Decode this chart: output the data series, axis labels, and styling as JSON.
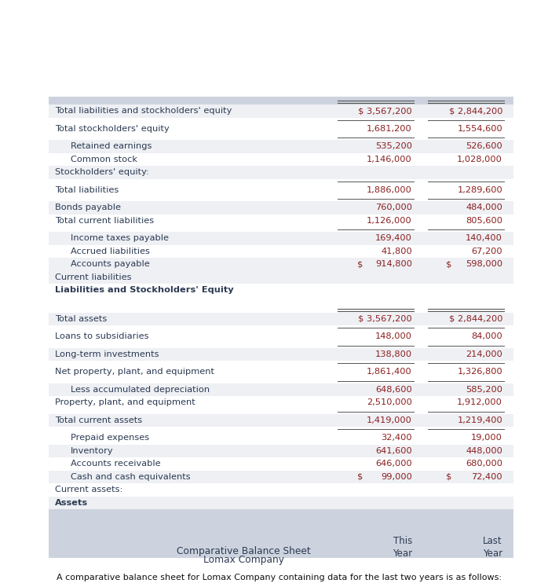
{
  "intro_text": "A comparative balance sheet for Lomax Company containing data for the last two years is as follows:",
  "title_line1": "Lomax Company",
  "title_line2": "Comparative Balance Sheet",
  "header_bg": "#cdd3de",
  "row_bg_alt": "#eef0f4",
  "row_bg_white": "#ffffff",
  "text_color": "#2b3a52",
  "number_color": "#8b2020",
  "intro_color": "#111111",
  "bottom_bar_color": "#cdd3de",
  "separator_color": "#555555",
  "rows": [
    {
      "label": "Assets",
      "this": "",
      "last": "",
      "indent": 0,
      "bold": true,
      "dollar_sign": false,
      "double_line": false,
      "is_sep": false,
      "is_gap": false,
      "bg": "alt"
    },
    {
      "label": "Current assets:",
      "this": "",
      "last": "",
      "indent": 0,
      "bold": false,
      "dollar_sign": false,
      "double_line": false,
      "is_sep": false,
      "is_gap": false,
      "bg": "white"
    },
    {
      "label": "Cash and cash equivalents",
      "this": "99,000",
      "last": "72,400",
      "indent": 1,
      "bold": false,
      "dollar_sign": true,
      "double_line": false,
      "is_sep": false,
      "is_gap": false,
      "bg": "alt"
    },
    {
      "label": "Accounts receivable",
      "this": "646,000",
      "last": "680,000",
      "indent": 1,
      "bold": false,
      "dollar_sign": false,
      "double_line": false,
      "is_sep": false,
      "is_gap": false,
      "bg": "white"
    },
    {
      "label": "Inventory",
      "this": "641,600",
      "last": "448,000",
      "indent": 1,
      "bold": false,
      "dollar_sign": false,
      "double_line": false,
      "is_sep": false,
      "is_gap": false,
      "bg": "alt"
    },
    {
      "label": "Prepaid expenses",
      "this": "32,400",
      "last": "19,000",
      "indent": 1,
      "bold": false,
      "dollar_sign": false,
      "double_line": false,
      "is_sep": false,
      "is_gap": false,
      "bg": "white"
    },
    {
      "label": "",
      "this": "",
      "last": "",
      "indent": 0,
      "bold": false,
      "dollar_sign": false,
      "double_line": false,
      "is_sep": true,
      "is_gap": false,
      "bg": "white"
    },
    {
      "label": "Total current assets",
      "this": "1,419,000",
      "last": "1,219,400",
      "indent": 0,
      "bold": false,
      "dollar_sign": false,
      "double_line": false,
      "is_sep": false,
      "is_gap": false,
      "bg": "alt"
    },
    {
      "label": "",
      "this": "",
      "last": "",
      "indent": 0,
      "bold": false,
      "dollar_sign": false,
      "double_line": false,
      "is_sep": true,
      "is_gap": false,
      "bg": "white"
    },
    {
      "label": "Property, plant, and equipment",
      "this": "2,510,000",
      "last": "1,912,000",
      "indent": 0,
      "bold": false,
      "dollar_sign": false,
      "double_line": false,
      "is_sep": false,
      "is_gap": false,
      "bg": "white"
    },
    {
      "label": "Less accumulated depreciation",
      "this": "648,600",
      "last": "585,200",
      "indent": 1,
      "bold": false,
      "dollar_sign": false,
      "double_line": false,
      "is_sep": false,
      "is_gap": false,
      "bg": "alt"
    },
    {
      "label": "",
      "this": "",
      "last": "",
      "indent": 0,
      "bold": false,
      "dollar_sign": false,
      "double_line": false,
      "is_sep": true,
      "is_gap": false,
      "bg": "white"
    },
    {
      "label": "Net property, plant, and equipment",
      "this": "1,861,400",
      "last": "1,326,800",
      "indent": 0,
      "bold": false,
      "dollar_sign": false,
      "double_line": false,
      "is_sep": false,
      "is_gap": false,
      "bg": "white"
    },
    {
      "label": "",
      "this": "",
      "last": "",
      "indent": 0,
      "bold": false,
      "dollar_sign": false,
      "double_line": false,
      "is_sep": true,
      "is_gap": false,
      "bg": "alt"
    },
    {
      "label": "Long-term investments",
      "this": "138,800",
      "last": "214,000",
      "indent": 0,
      "bold": false,
      "dollar_sign": false,
      "double_line": false,
      "is_sep": false,
      "is_gap": false,
      "bg": "alt"
    },
    {
      "label": "",
      "this": "",
      "last": "",
      "indent": 0,
      "bold": false,
      "dollar_sign": false,
      "double_line": false,
      "is_sep": true,
      "is_gap": false,
      "bg": "white"
    },
    {
      "label": "Loans to subsidiaries",
      "this": "148,000",
      "last": "84,000",
      "indent": 0,
      "bold": false,
      "dollar_sign": false,
      "double_line": false,
      "is_sep": false,
      "is_gap": false,
      "bg": "white"
    },
    {
      "label": "",
      "this": "",
      "last": "",
      "indent": 0,
      "bold": false,
      "dollar_sign": false,
      "double_line": false,
      "is_sep": true,
      "is_gap": false,
      "bg": "alt"
    },
    {
      "label": "Total assets",
      "this": "$ 3,567,200",
      "last": "$ 2,844,200",
      "indent": 0,
      "bold": false,
      "dollar_sign": false,
      "double_line": true,
      "is_sep": false,
      "is_gap": false,
      "bg": "alt"
    },
    {
      "label": "",
      "this": "",
      "last": "",
      "indent": 0,
      "bold": false,
      "dollar_sign": false,
      "double_line": false,
      "is_sep": false,
      "is_gap": true,
      "bg": "white"
    },
    {
      "label": "Liabilities and Stockholders' Equity",
      "this": "",
      "last": "",
      "indent": 0,
      "bold": true,
      "dollar_sign": false,
      "double_line": false,
      "is_sep": false,
      "is_gap": false,
      "bg": "white"
    },
    {
      "label": "Current liabilities",
      "this": "",
      "last": "",
      "indent": 0,
      "bold": false,
      "dollar_sign": false,
      "double_line": false,
      "is_sep": false,
      "is_gap": false,
      "bg": "alt"
    },
    {
      "label": "Accounts payable",
      "this": "914,800",
      "last": "598,000",
      "indent": 1,
      "bold": false,
      "dollar_sign": true,
      "double_line": false,
      "is_sep": false,
      "is_gap": false,
      "bg": "alt"
    },
    {
      "label": "Accrued liabilities",
      "this": "41,800",
      "last": "67,200",
      "indent": 1,
      "bold": false,
      "dollar_sign": false,
      "double_line": false,
      "is_sep": false,
      "is_gap": false,
      "bg": "white"
    },
    {
      "label": "Income taxes payable",
      "this": "169,400",
      "last": "140,400",
      "indent": 1,
      "bold": false,
      "dollar_sign": false,
      "double_line": false,
      "is_sep": false,
      "is_gap": false,
      "bg": "alt"
    },
    {
      "label": "",
      "this": "",
      "last": "",
      "indent": 0,
      "bold": false,
      "dollar_sign": false,
      "double_line": false,
      "is_sep": true,
      "is_gap": false,
      "bg": "white"
    },
    {
      "label": "Total current liabilities",
      "this": "1,126,000",
      "last": "805,600",
      "indent": 0,
      "bold": false,
      "dollar_sign": false,
      "double_line": false,
      "is_sep": false,
      "is_gap": false,
      "bg": "white"
    },
    {
      "label": "Bonds payable",
      "this": "760,000",
      "last": "484,000",
      "indent": 0,
      "bold": false,
      "dollar_sign": false,
      "double_line": false,
      "is_sep": false,
      "is_gap": false,
      "bg": "alt"
    },
    {
      "label": "",
      "this": "",
      "last": "",
      "indent": 0,
      "bold": false,
      "dollar_sign": false,
      "double_line": false,
      "is_sep": true,
      "is_gap": false,
      "bg": "white"
    },
    {
      "label": "Total liabilities",
      "this": "1,886,000",
      "last": "1,289,600",
      "indent": 0,
      "bold": false,
      "dollar_sign": false,
      "double_line": false,
      "is_sep": false,
      "is_gap": false,
      "bg": "white"
    },
    {
      "label": "",
      "this": "",
      "last": "",
      "indent": 0,
      "bold": false,
      "dollar_sign": false,
      "double_line": false,
      "is_sep": true,
      "is_gap": false,
      "bg": "alt"
    },
    {
      "label": "Stockholders' equity:",
      "this": "",
      "last": "",
      "indent": 0,
      "bold": false,
      "dollar_sign": false,
      "double_line": false,
      "is_sep": false,
      "is_gap": false,
      "bg": "alt"
    },
    {
      "label": "Common stock",
      "this": "1,146,000",
      "last": "1,028,000",
      "indent": 1,
      "bold": false,
      "dollar_sign": false,
      "double_line": false,
      "is_sep": false,
      "is_gap": false,
      "bg": "white"
    },
    {
      "label": "Retained earnings",
      "this": "535,200",
      "last": "526,600",
      "indent": 1,
      "bold": false,
      "dollar_sign": false,
      "double_line": false,
      "is_sep": false,
      "is_gap": false,
      "bg": "alt"
    },
    {
      "label": "",
      "this": "",
      "last": "",
      "indent": 0,
      "bold": false,
      "dollar_sign": false,
      "double_line": false,
      "is_sep": true,
      "is_gap": false,
      "bg": "white"
    },
    {
      "label": "Total stockholders' equity",
      "this": "1,681,200",
      "last": "1,554,600",
      "indent": 0,
      "bold": false,
      "dollar_sign": false,
      "double_line": false,
      "is_sep": false,
      "is_gap": false,
      "bg": "white"
    },
    {
      "label": "",
      "this": "",
      "last": "",
      "indent": 0,
      "bold": false,
      "dollar_sign": false,
      "double_line": false,
      "is_sep": true,
      "is_gap": false,
      "bg": "alt"
    },
    {
      "label": "Total liabilities and stockholders' equity",
      "this": "$ 3,567,200",
      "last": "$ 2,844,200",
      "indent": 0,
      "bold": false,
      "dollar_sign": false,
      "double_line": true,
      "is_sep": false,
      "is_gap": false,
      "bg": "alt"
    }
  ]
}
